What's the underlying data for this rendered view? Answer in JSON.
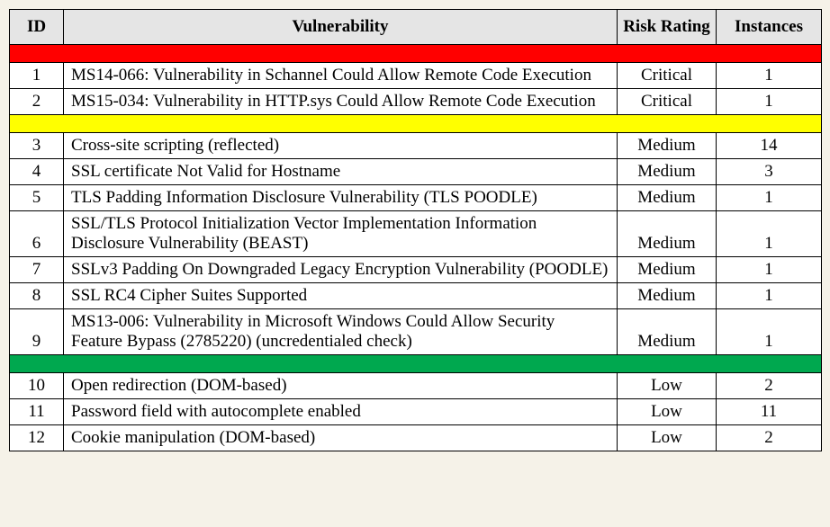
{
  "columns": [
    "ID",
    "Vulnerability",
    "Risk Rating",
    "Instances"
  ],
  "header_bg": "#e5e5e5",
  "border_color": "#000000",
  "font_family": "Times New Roman",
  "base_fontsize_pt": 14,
  "separator_colors": {
    "critical": "#ff0000",
    "medium": "#ffff00",
    "low": "#00a84f"
  },
  "rows": [
    {
      "type": "separator",
      "level": "critical"
    },
    {
      "type": "data",
      "id": "1",
      "vulnerability": "MS14-066: Vulnerability in Schannel Could Allow Remote Code Execution",
      "risk": "Critical",
      "instances": "1"
    },
    {
      "type": "data",
      "id": "2",
      "vulnerability": "MS15-034: Vulnerability in HTTP.sys Could Allow Remote Code Execution",
      "risk": "Critical",
      "instances": "1"
    },
    {
      "type": "separator",
      "level": "medium"
    },
    {
      "type": "data",
      "id": "3",
      "vulnerability": "Cross-site scripting (reflected)",
      "risk": "Medium",
      "instances": "14"
    },
    {
      "type": "data",
      "id": "4",
      "vulnerability": "SSL certificate Not Valid for Hostname",
      "risk": "Medium",
      "instances": "3"
    },
    {
      "type": "data",
      "id": "5",
      "vulnerability": "TLS Padding Information Disclosure Vulnerability (TLS POODLE)",
      "risk": "Medium",
      "instances": "1"
    },
    {
      "type": "data",
      "id": "6",
      "vulnerability": "SSL/TLS Protocol Initialization Vector Implementation Information Disclosure Vulnerability (BEAST)",
      "risk": "Medium",
      "instances": "1"
    },
    {
      "type": "data",
      "id": "7",
      "vulnerability": "SSLv3 Padding On Downgraded Legacy Encryption Vulnerability (POODLE)",
      "risk": "Medium",
      "instances": "1"
    },
    {
      "type": "data",
      "id": "8",
      "vulnerability": "SSL RC4 Cipher Suites Supported",
      "risk": "Medium",
      "instances": "1"
    },
    {
      "type": "data",
      "id": "9",
      "vulnerability": "MS13-006: Vulnerability in Microsoft Windows Could Allow Security Feature Bypass (2785220) (uncredentialed check)",
      "risk": "Medium",
      "instances": "1"
    },
    {
      "type": "separator",
      "level": "low"
    },
    {
      "type": "data",
      "id": "10",
      "vulnerability": "Open redirection (DOM-based)",
      "risk": "Low",
      "instances": "2"
    },
    {
      "type": "data",
      "id": "11",
      "vulnerability": "Password field with autocomplete enabled",
      "risk": "Low",
      "instances": "11"
    },
    {
      "type": "data",
      "id": "12",
      "vulnerability": "Cookie manipulation (DOM-based)",
      "risk": "Low",
      "instances": "2"
    }
  ]
}
